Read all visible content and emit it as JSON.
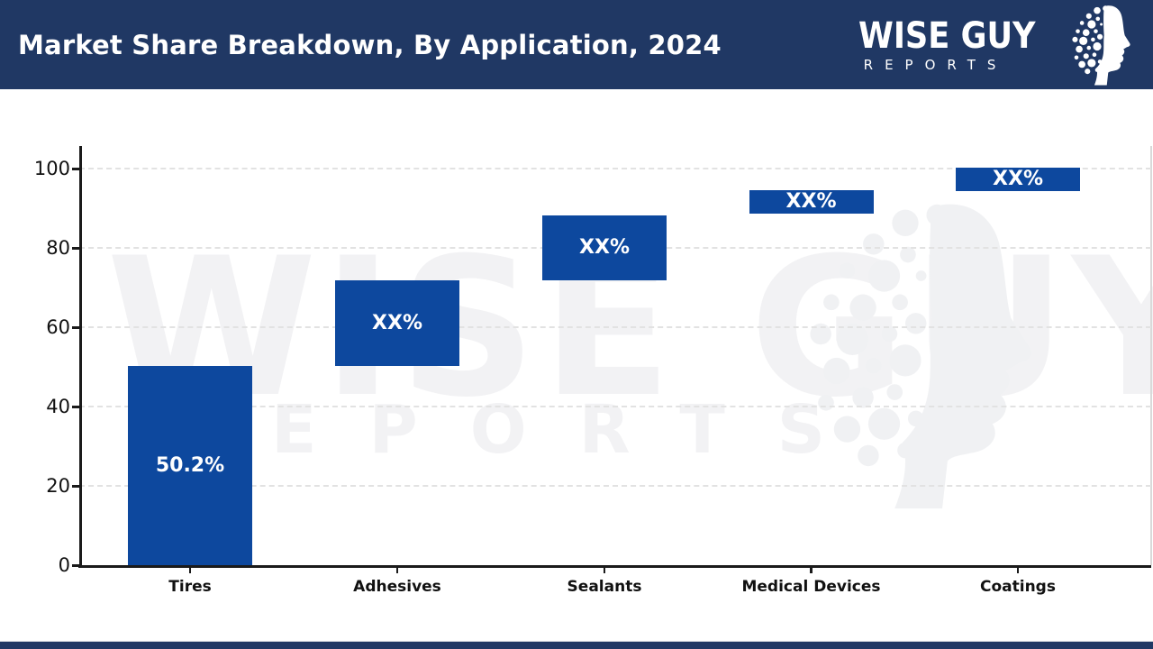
{
  "header": {
    "title": "Market Share Breakdown, By Application, 2024",
    "logo": {
      "line1": "WISE GUY",
      "line2": "REPORTS"
    }
  },
  "watermark": {
    "line1": "WISE GUY",
    "line2": "REPORTS"
  },
  "chart_data": {
    "type": "bar",
    "subtype": "floating_waterfall_segments",
    "title": "Market Share Breakdown, By Application, 2024",
    "categories": [
      "Tires",
      "Adhesives",
      "Sealants",
      "Medical Devices",
      "Coatings"
    ],
    "segments": [
      {
        "category": "Tires",
        "start": 0,
        "end": 50.2,
        "label": "50.2%"
      },
      {
        "category": "Adhesives",
        "start": 50.2,
        "end": 71.8,
        "label": "XX%"
      },
      {
        "category": "Sealants",
        "start": 71.9,
        "end": 88.2,
        "label": "XX%"
      },
      {
        "category": "Medical Devices",
        "start": 88.6,
        "end": 94.5,
        "label": "XX%"
      },
      {
        "category": "Coatings",
        "start": 94.3,
        "end": 100.3,
        "label": "XX%"
      }
    ],
    "yticks": [
      0,
      20,
      40,
      60,
      80,
      100
    ],
    "ylim": [
      0,
      105
    ],
    "xlabel": "",
    "ylabel": "",
    "grid": "horizontal dashed",
    "legend": "none",
    "bar_color": "#0d489e",
    "bar_label_color": "#ffffff"
  },
  "colors": {
    "header_bg": "#203864",
    "footer_bg": "#203864",
    "bar": "#0d489e",
    "gridline": "#e2e2e2",
    "axis": "#1a1a1a",
    "watermark": "#f2f2f4"
  }
}
